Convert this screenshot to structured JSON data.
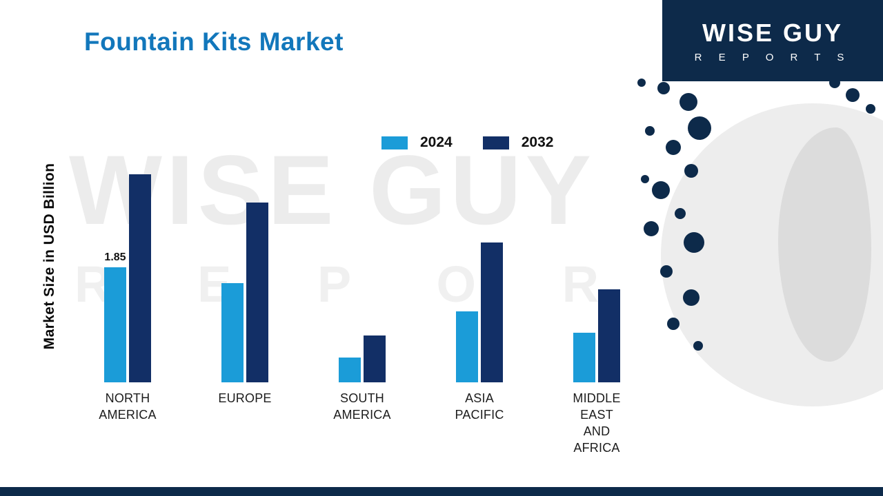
{
  "page": {
    "title": "Fountain Kits Market"
  },
  "colors": {
    "accent_blue": "#1277bb",
    "navy": "#0d2a4a",
    "bar_2024": "#1b9cd8",
    "bar_2032": "#122f66"
  },
  "logo": {
    "line1": "WISE GUY",
    "line2": "R E P O R T S"
  },
  "watermark": {
    "line1": "WISE GUY",
    "line2": "R E P O R T S"
  },
  "chart_data": {
    "type": "bar",
    "title": "Fountain Kits Market",
    "xlabel": "",
    "ylabel": "Market Size in USD Billion",
    "categories": [
      "NORTH AMERICA",
      "EUROPE",
      "SOUTH AMERICA",
      "ASIA PACIFIC",
      "MIDDLE EAST AND AFRICA"
    ],
    "series": [
      {
        "name": "2024",
        "color": "#1b9cd8",
        "values": [
          1.85,
          1.6,
          0.4,
          1.15,
          0.8
        ]
      },
      {
        "name": "2032",
        "color": "#122f66",
        "values": [
          3.35,
          2.9,
          0.75,
          2.25,
          1.5
        ]
      }
    ],
    "annotations": [
      {
        "category": "NORTH AMERICA",
        "series": "2024",
        "text": "1.85"
      }
    ],
    "ylim": [
      0,
      3.6
    ],
    "grid": false,
    "legend_position": "top-right",
    "value_axis_visible": false
  }
}
